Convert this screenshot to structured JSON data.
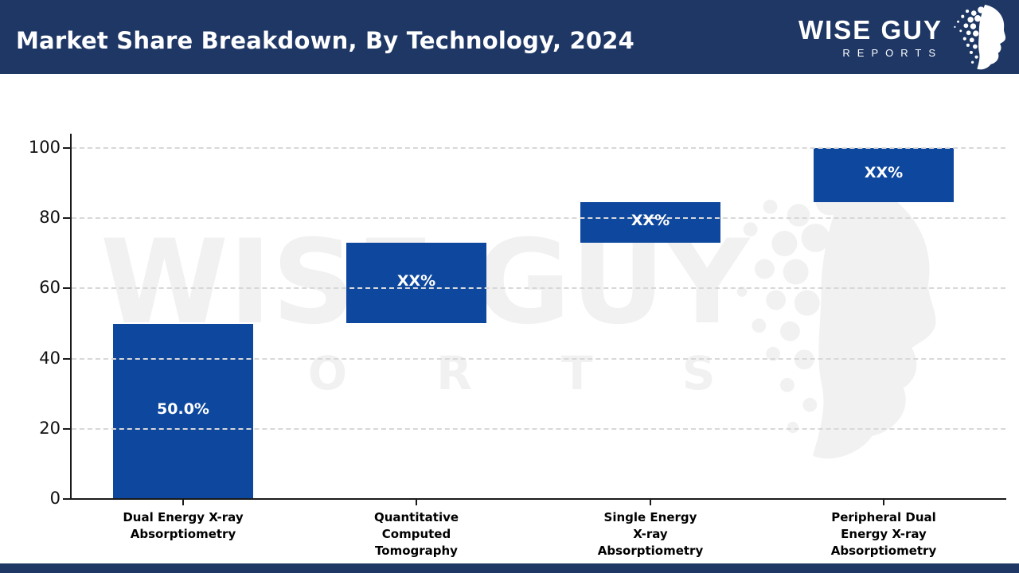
{
  "header": {
    "title": "Market Share Breakdown, By Technology, 2024",
    "logo_line1": "WISE GUY",
    "logo_line2": "REPORTS"
  },
  "watermark": {
    "line1": "WISE GUY",
    "line2": "P O R T S"
  },
  "colors": {
    "header_bg": "#1e3765",
    "footer_bg": "#1e3765",
    "bar": "#0d479e",
    "gridline": "#d8d8d8",
    "watermark": "#f1f1f1",
    "axis": "#1a1a1a",
    "bar_label_text": "#ffffff",
    "title_text": "#ffffff"
  },
  "chart_data": {
    "type": "bar",
    "subtype": "waterfall",
    "title": "Market Share Breakdown, By Technology, 2024",
    "xlabel": "",
    "ylabel": "",
    "categories": [
      "Dual Energy X-ray Absorptiometry",
      "Quantitative Computed Tomography",
      "Single Energy X-ray Absorptiometry",
      "Peripheral Dual Energy X-ray Absorptiometry"
    ],
    "category_lines": [
      [
        "Dual Energy X-ray",
        "Absorptiometry"
      ],
      [
        "Quantitative",
        "Computed",
        "Tomography"
      ],
      [
        "Single Energy",
        "X-ray",
        "Absorptiometry"
      ],
      [
        "Peripheral Dual",
        "Energy X-ray",
        "Absorptiometry"
      ]
    ],
    "segments": [
      {
        "start": 0,
        "end": 50,
        "value": 50.0,
        "label": "50.0%"
      },
      {
        "start": 50,
        "end": 73,
        "value": 23.0,
        "label": "XX%"
      },
      {
        "start": 73,
        "end": 84.5,
        "value": 11.5,
        "label": "XX%"
      },
      {
        "start": 84.5,
        "end": 100,
        "value": 15.5,
        "label": "XX%"
      }
    ],
    "y_ticks": [
      0,
      20,
      40,
      60,
      80,
      100
    ],
    "ylim": [
      0,
      104
    ],
    "grid": "horizontal-dashed",
    "legend": false
  }
}
